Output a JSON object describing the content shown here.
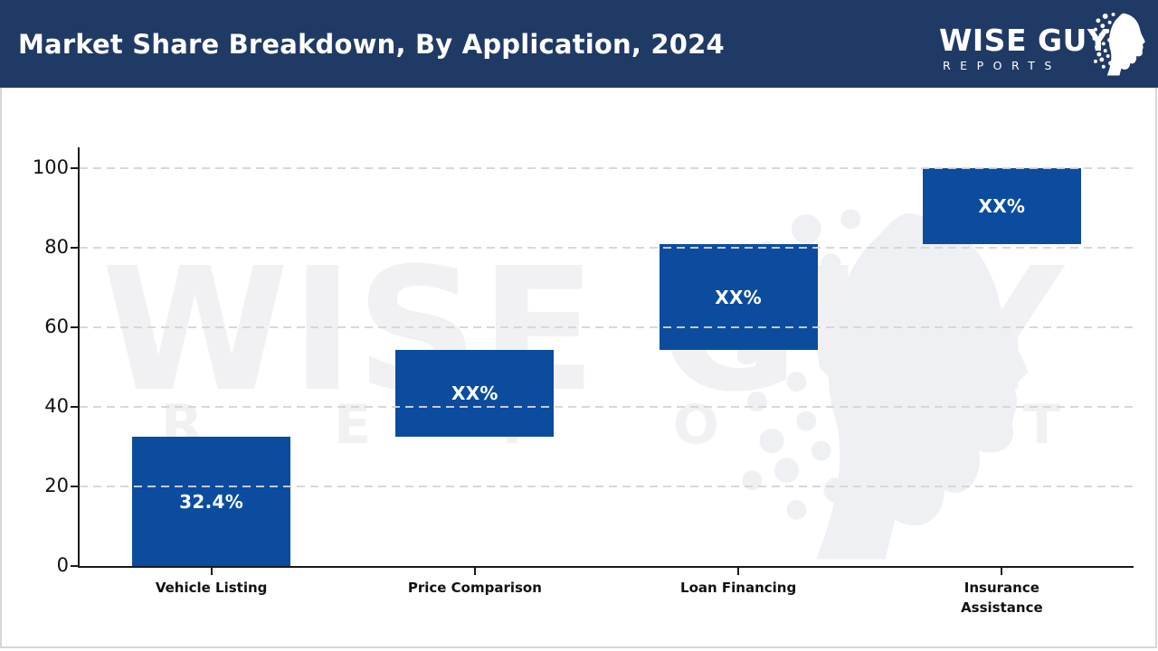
{
  "header": {
    "title": "Market Share Breakdown, By Application, 2024",
    "logo": {
      "brand": "WISE GUY",
      "tagline": "REPORTS"
    }
  },
  "watermark": {
    "brand": "WISE GUY",
    "tagline": "R E P O R T S"
  },
  "colors": {
    "header_bg": "#203a66",
    "bar": "#0b4c9f",
    "bar_label": "#ffffff",
    "axis": "#1a1a1a",
    "grid": "#d5d5d5",
    "watermark": "#f1f1f4"
  },
  "chart_data": {
    "type": "bar",
    "subtype": "floating-waterfall",
    "title": "Market Share Breakdown, By Application, 2024",
    "categories": [
      "Vehicle Listing",
      "Price Comparison",
      "Loan Financing",
      "Insurance\nAssistance"
    ],
    "segments": [
      {
        "category": "Vehicle Listing",
        "start": 0,
        "end": 32.4,
        "label": "32.4%"
      },
      {
        "category": "Price Comparison",
        "start": 32.4,
        "end": 54.3,
        "label": "XX%"
      },
      {
        "category": "Loan Financing",
        "start": 54.3,
        "end": 80.9,
        "label": "XX%"
      },
      {
        "category": "Insurance Assistance",
        "start": 80.9,
        "end": 100,
        "label": "XX%"
      }
    ],
    "ylim": [
      0,
      100
    ],
    "yticks": [
      0,
      20,
      40,
      60,
      80,
      100
    ],
    "xlabel": "",
    "ylabel": "",
    "grid": "horizontal-dashed",
    "legend": "none",
    "bar_label_note": "values shown inside bars; XX% are masked values"
  }
}
